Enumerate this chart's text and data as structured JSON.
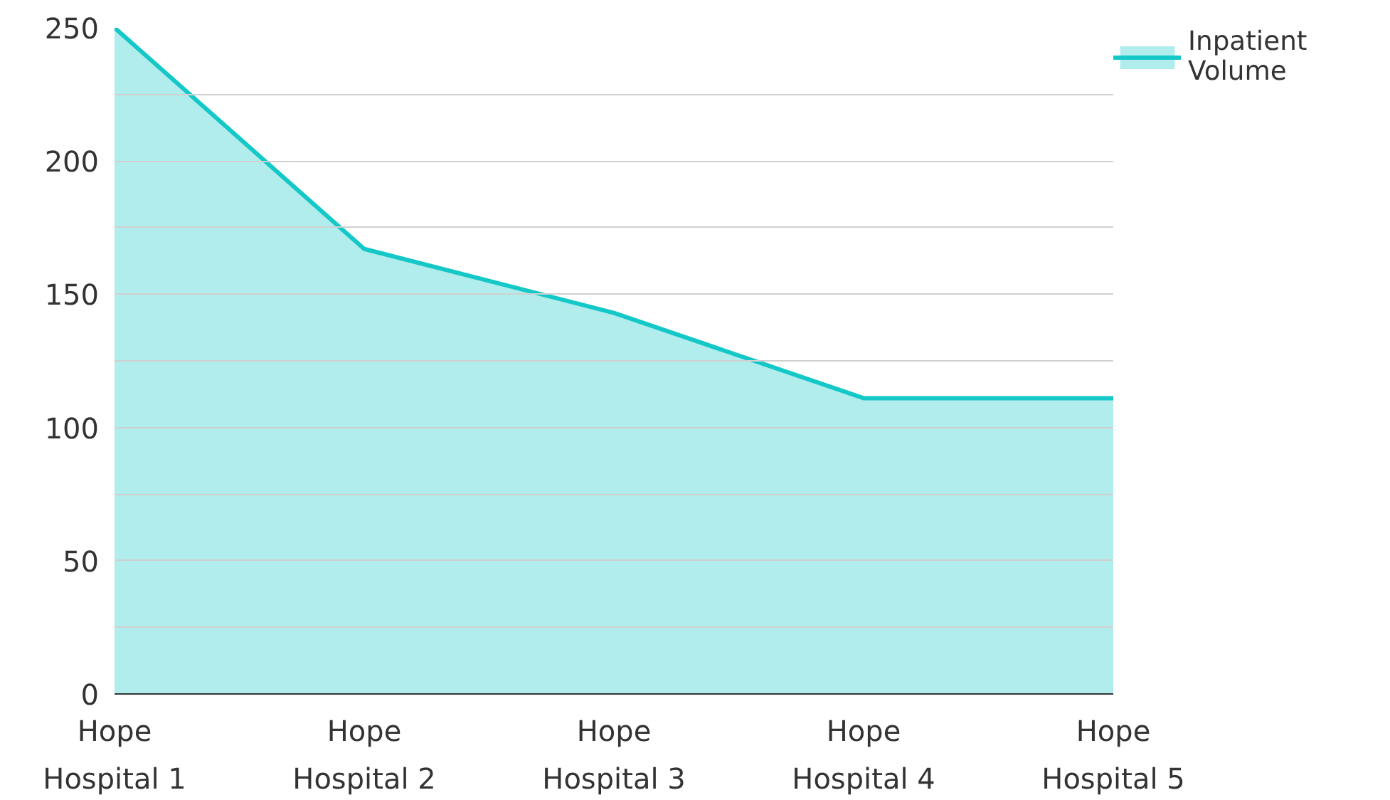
{
  "chart_data": {
    "type": "area",
    "categories": [
      "Hope Hospital 1",
      "Hope Hospital 2",
      "Hope Hospital 3",
      "Hope Hospital 4",
      "Hope Hospital 5"
    ],
    "series": [
      {
        "name": "Inpatient Volume",
        "color": "#14c8c8",
        "values": [
          250,
          167,
          143,
          111,
          111
        ]
      }
    ],
    "ylim": [
      0,
      250
    ],
    "yticks": [
      0,
      {
        "value": 25,
        "label": null
      },
      50,
      {
        "value": 75,
        "label": null
      },
      100,
      {
        "value": 125,
        "label": null
      },
      150,
      {
        "value": 175,
        "label": null
      },
      200,
      {
        "value": 225,
        "label": null
      },
      250
    ],
    "grid": "y",
    "legend": "top right"
  }
}
